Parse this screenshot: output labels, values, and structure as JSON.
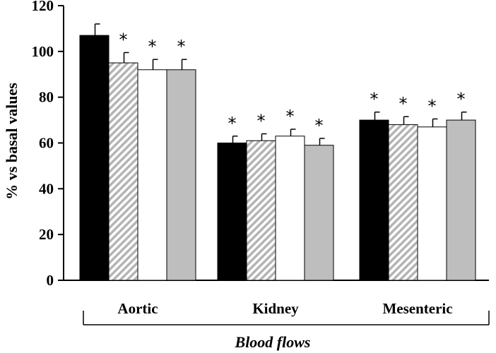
{
  "chart_data": {
    "type": "bar",
    "title": "",
    "ylabel": "% vs basal values",
    "xlabel": "Blood flows",
    "ylim": [
      0,
      120
    ],
    "yticks": [
      0,
      20,
      40,
      60,
      80,
      100,
      120
    ],
    "categories": [
      "Aortic",
      "Kidney",
      "Mesenteric"
    ],
    "series": [
      {
        "values": [
          107,
          60,
          70
        ],
        "errors": [
          5,
          3,
          3.5
        ],
        "significant": [
          false,
          true,
          true
        ],
        "fill": "#000000",
        "pattern": "solid"
      },
      {
        "values": [
          95,
          61,
          68
        ],
        "errors": [
          4.5,
          3,
          3.5
        ],
        "significant": [
          true,
          true,
          true
        ],
        "fill": "#c8c8c8",
        "pattern": "hatched"
      },
      {
        "values": [
          92,
          63,
          67
        ],
        "errors": [
          4.5,
          3,
          3.5
        ],
        "significant": [
          true,
          true,
          true
        ],
        "fill": "#ffffff",
        "pattern": "solid"
      },
      {
        "values": [
          92,
          59,
          70
        ],
        "errors": [
          4.5,
          3,
          3.5
        ],
        "significant": [
          true,
          true,
          true
        ],
        "fill": "#bebebe",
        "pattern": "solid"
      }
    ],
    "significance_marker": "*",
    "grid": false,
    "legend": "none"
  }
}
